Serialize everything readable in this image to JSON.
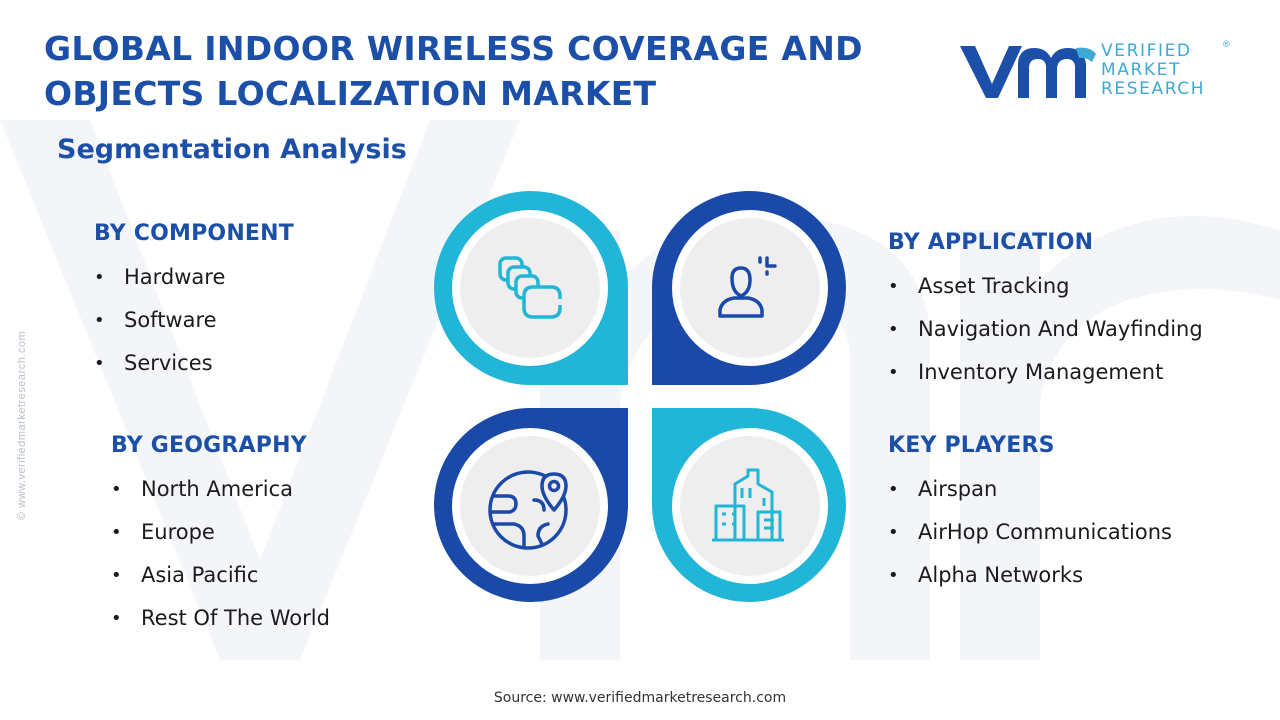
{
  "header": {
    "title_line1": "GLOBAL INDOOR WIRELESS COVERAGE AND",
    "title_line2": "OBJECTS LOCALIZATION MARKET",
    "subtitle": "Segmentation Analysis"
  },
  "logo": {
    "line1": "VERIFIED",
    "line2": "MARKET",
    "line3": "RESEARCH",
    "registered": "®"
  },
  "side_url": "© www.verifiedmarketresearch.com",
  "segments": {
    "component": {
      "heading": "BY COMPONENT",
      "items": [
        "Hardware",
        "Software",
        "Services"
      ]
    },
    "geography": {
      "heading": "BY GEOGRAPHY",
      "items": [
        "North America",
        "Europe",
        "Asia Pacific",
        "Rest Of The World"
      ]
    },
    "application": {
      "heading": "BY APPLICATION",
      "items": [
        "Asset Tracking",
        "Navigation And Wayfinding",
        "Inventory Management"
      ]
    },
    "players": {
      "heading": "KEY PLAYERS",
      "items": [
        "Airspan",
        "AirHop Communications",
        "Alpha Networks"
      ]
    }
  },
  "icons": {
    "top_left": "layered-cards-icon",
    "top_right": "user-target-icon",
    "bottom_left": "globe-location-icon",
    "bottom_right": "city-buildings-icon"
  },
  "colors": {
    "title_blue": "#1c4fa8",
    "dark_blue": "#1a49a8",
    "light_cyan": "#21b5d8",
    "logo_cyan": "#3fa9d6",
    "inner_circle": "#eeeeef"
  },
  "footer": {
    "source": "Source: www.verifiedmarketresearch.com"
  }
}
